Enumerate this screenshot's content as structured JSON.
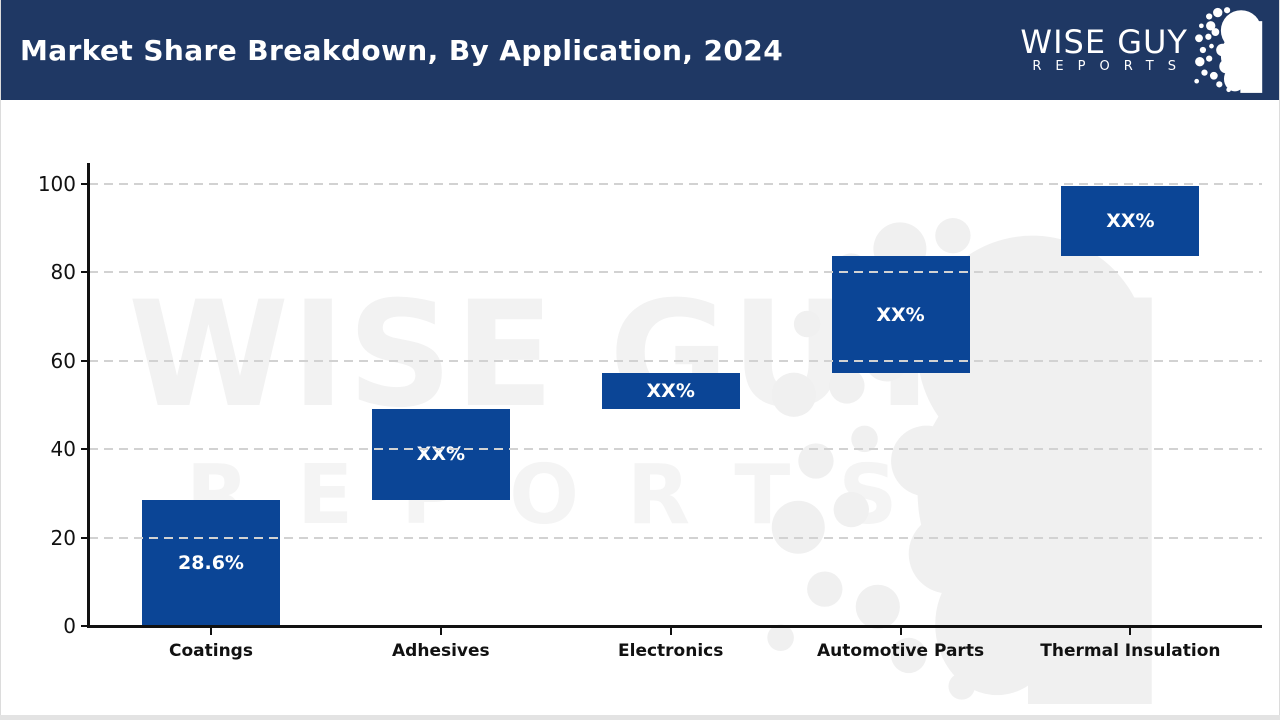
{
  "header": {
    "title": "Market Share Breakdown, By Application, 2024",
    "bg_color": "#1F3864",
    "logo": {
      "line1": "WISE GUY",
      "line2": "REPORTS"
    }
  },
  "watermark": {
    "line1": "WISE GUY",
    "line2": "REPORTS"
  },
  "chart_data": {
    "type": "bar",
    "subtype": "waterfall",
    "title": "Market Share Breakdown, By Application, 2024",
    "xlabel": "",
    "ylabel": "",
    "categories": [
      "Coatings",
      "Adhesives",
      "Electronics",
      "Automotive Parts",
      "Thermal Insulation"
    ],
    "segments": [
      {
        "category": "Coatings",
        "start": 0,
        "end": 28.6,
        "value_label": "28.6%"
      },
      {
        "category": "Adhesives",
        "start": 28.6,
        "end": 49.0,
        "value_label": "XX%"
      },
      {
        "category": "Electronics",
        "start": 49.0,
        "end": 57.2,
        "value_label": "XX%"
      },
      {
        "category": "Automotive Parts",
        "start": 57.2,
        "end": 83.7,
        "value_label": "XX%"
      },
      {
        "category": "Thermal Insulation",
        "start": 83.7,
        "end": 99.5,
        "value_label": "XX%"
      }
    ],
    "yticks": [
      0,
      20,
      40,
      60,
      80,
      100
    ],
    "ylim": [
      0,
      105
    ],
    "grid": true,
    "legend": "none",
    "bar_color": "#0B4596",
    "gridline_color": "#D2D2D2",
    "axis_color": "#111111",
    "value_label_color": "#FFFFFF"
  }
}
